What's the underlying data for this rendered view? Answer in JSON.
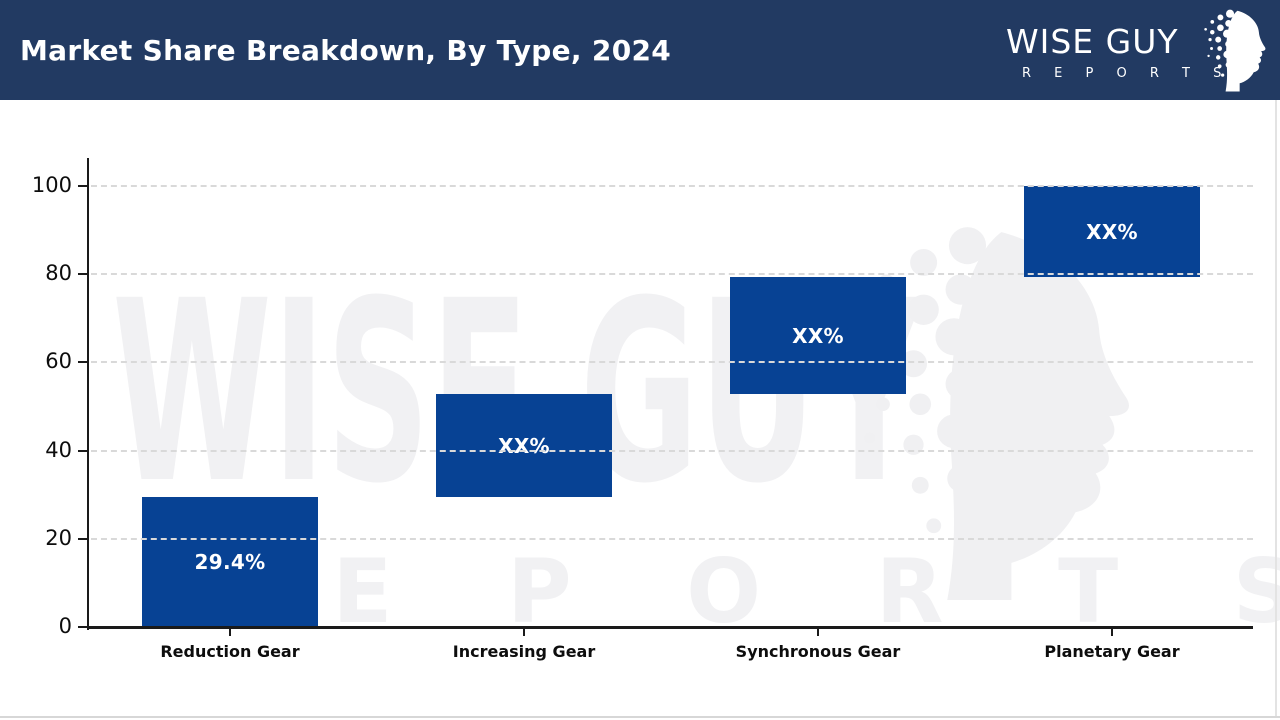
{
  "header": {
    "title": "Market Share Breakdown, By Type, 2024",
    "bg_color": "#223a62",
    "logo": {
      "wise_guy": "WISE GUY",
      "reports": "R E P O R T S"
    }
  },
  "watermark": {
    "wise_guy": "WISE GUY",
    "reports": "R E P O R T S"
  },
  "chart_data": {
    "type": "bar",
    "subtype": "waterfall",
    "title": "Market Share Breakdown, By Type, 2024",
    "categories": [
      "Reduction Gear",
      "Increasing Gear",
      "Synchronous Gear",
      "Planetary Gear"
    ],
    "segments": [
      {
        "category": "Reduction Gear",
        "start": 0,
        "end": 29.4,
        "label": "29.4%"
      },
      {
        "category": "Increasing Gear",
        "start": 29.4,
        "end": 52.8,
        "label": "XX%"
      },
      {
        "category": "Synchronous Gear",
        "start": 52.8,
        "end": 79.3,
        "label": "XX%"
      },
      {
        "category": "Planetary Gear",
        "start": 79.3,
        "end": 100,
        "label": "XX%"
      }
    ],
    "y_ticks": [
      0,
      20,
      40,
      60,
      80,
      100
    ],
    "ylim": [
      0,
      106
    ],
    "grid": "horizontal-dashed",
    "legend": "none",
    "bar_color": "#074294",
    "bar_label_color": "#ffffff",
    "grid_color": "#d9d9d9",
    "axis_color": "#1a1a1a",
    "tick_label_color": "#0d0d0d"
  }
}
